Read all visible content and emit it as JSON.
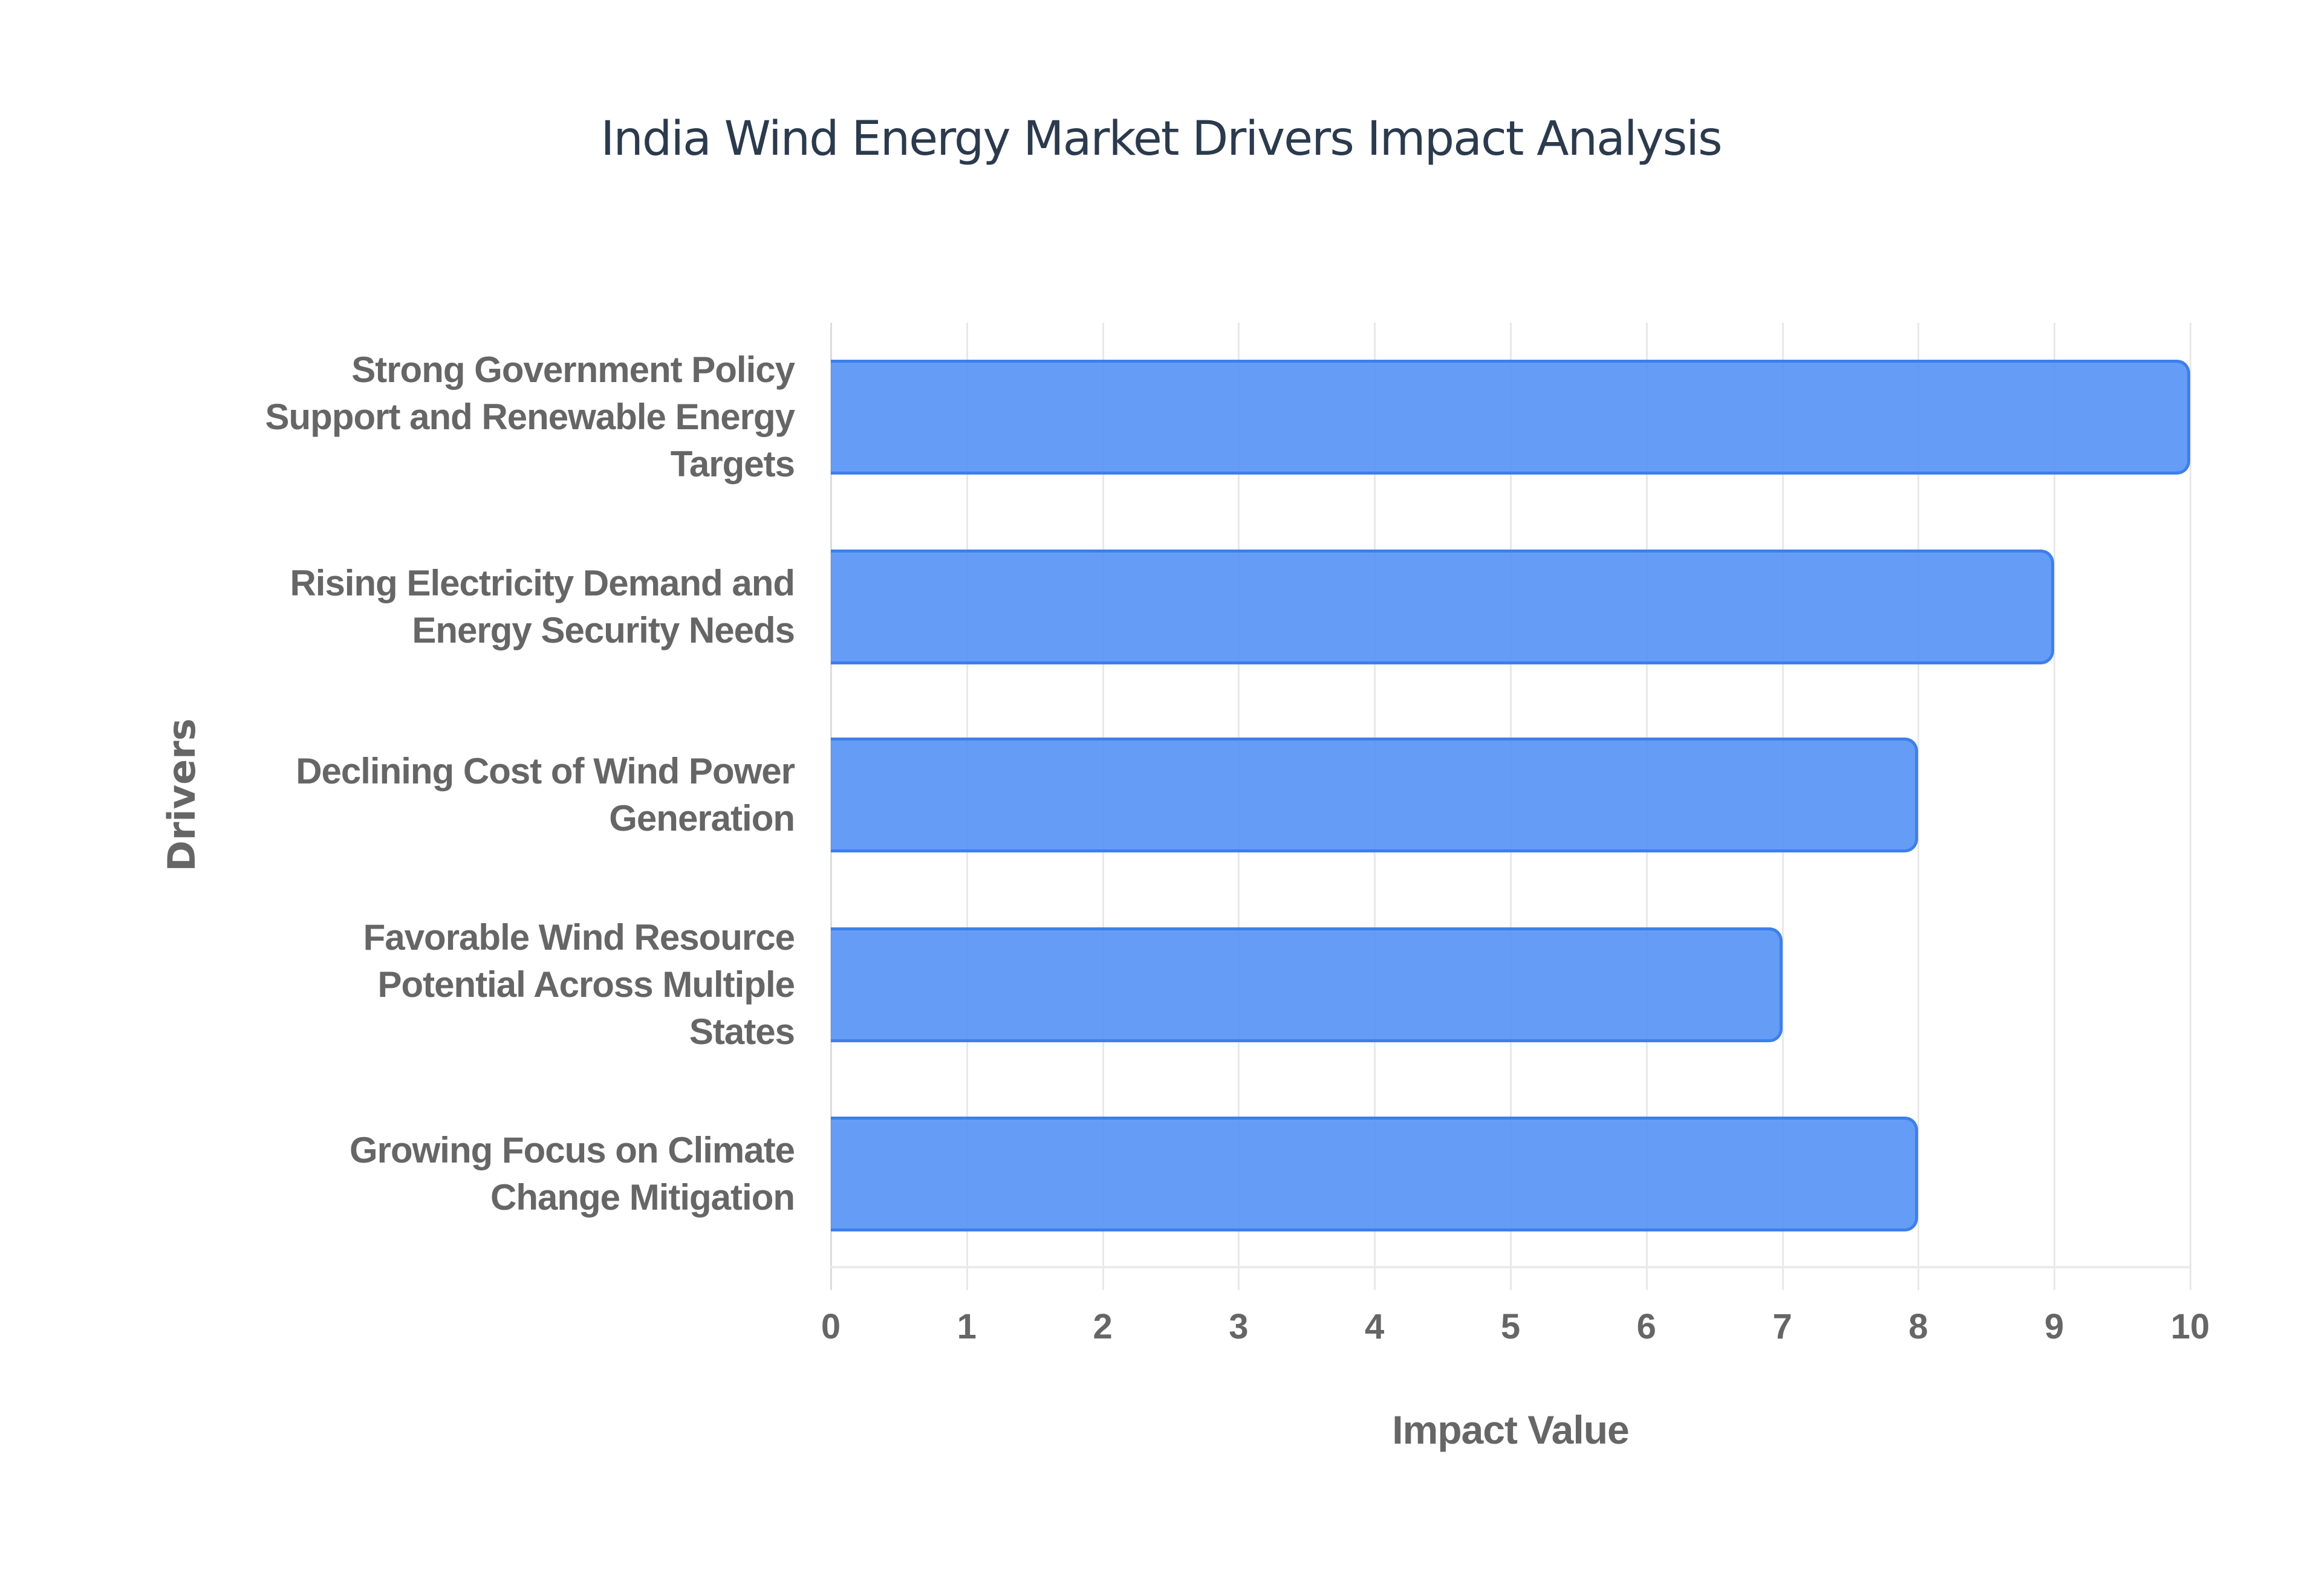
{
  "chart": {
    "title": "India Wind Energy Market Drivers Impact Analysis",
    "xlabel": "Impact Value",
    "ylabel": "Drivers",
    "bar_color": "#5b95f5",
    "bar_border_color": "#3d7fec",
    "x_ticks": [
      "0",
      "1",
      "2",
      "3",
      "4",
      "5",
      "6",
      "7",
      "8",
      "9",
      "10"
    ],
    "labels": [
      [
        "Strong Government Policy",
        "Support and Renewable Energy",
        "Targets"
      ],
      [
        "Rising Electricity Demand and",
        "Energy Security Needs"
      ],
      [
        "Declining Cost of Wind Power",
        "Generation"
      ],
      [
        "Favorable Wind Resource",
        "Potential Across Multiple",
        "States"
      ],
      [
        "Growing Focus on Climate",
        "Change Mitigation"
      ]
    ]
  },
  "chart_data": {
    "type": "bar",
    "orientation": "horizontal",
    "title": "India Wind Energy Market Drivers Impact Analysis",
    "xlabel": "Impact Value",
    "ylabel": "Drivers",
    "categories": [
      "Strong Government Policy Support and Renewable Energy Targets",
      "Rising Electricity Demand and Energy Security Needs",
      "Declining Cost of Wind Power Generation",
      "Favorable Wind Resource Potential Across Multiple States",
      "Growing Focus on Climate Change Mitigation"
    ],
    "values": [
      10,
      9,
      8,
      7,
      8
    ],
    "xlim": [
      0,
      10
    ],
    "x_ticks": [
      0,
      1,
      2,
      3,
      4,
      5,
      6,
      7,
      8,
      9,
      10
    ],
    "grid": "vertical",
    "legend": "none"
  }
}
